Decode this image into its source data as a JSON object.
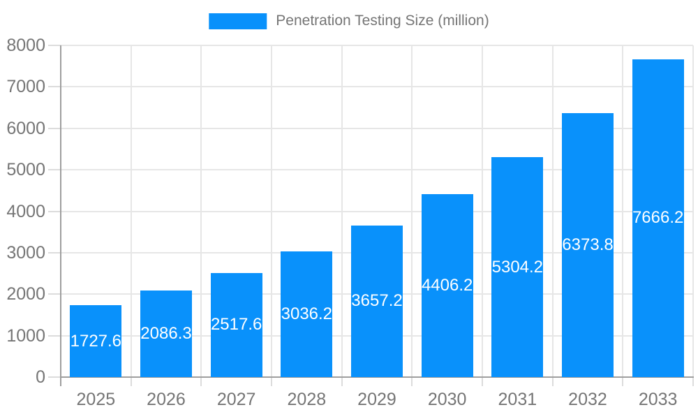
{
  "legend": {
    "label": "Penetration Testing Size (million)"
  },
  "chart_data": {
    "type": "bar",
    "title": "Penetration Testing Size (million)",
    "categories": [
      "2025",
      "2026",
      "2027",
      "2028",
      "2029",
      "2030",
      "2031",
      "2032",
      "2033"
    ],
    "series": [
      {
        "name": "Penetration Testing Size (million)",
        "values": [
          1727.6,
          2086.3,
          2517.6,
          3036.2,
          3657.2,
          4406.2,
          5304.2,
          6373.8,
          7666.2
        ]
      }
    ],
    "value_labels": [
      "1727.6",
      "2086.3",
      "2517.6",
      "3036.2",
      "3657.2",
      "4406.2",
      "5304.2",
      "6373.8",
      "7666.2"
    ],
    "xlabel": "",
    "ylabel": "",
    "ylim": [
      0,
      8000
    ],
    "ytick_step": 1000,
    "ytick_labels": [
      "0",
      "1000",
      "2000",
      "3000",
      "4000",
      "5000",
      "6000",
      "7000",
      "8000"
    ],
    "grid": true,
    "legend_position": "top-center",
    "colors": {
      "bar": "#0991fb",
      "bar_label": "#ffffff",
      "axis_text": "#757575",
      "grid_line": "#e6e6e6",
      "tick_line": "#dcdcdc",
      "axis_line": "#9e9e9e",
      "background": "#ffffff"
    }
  }
}
